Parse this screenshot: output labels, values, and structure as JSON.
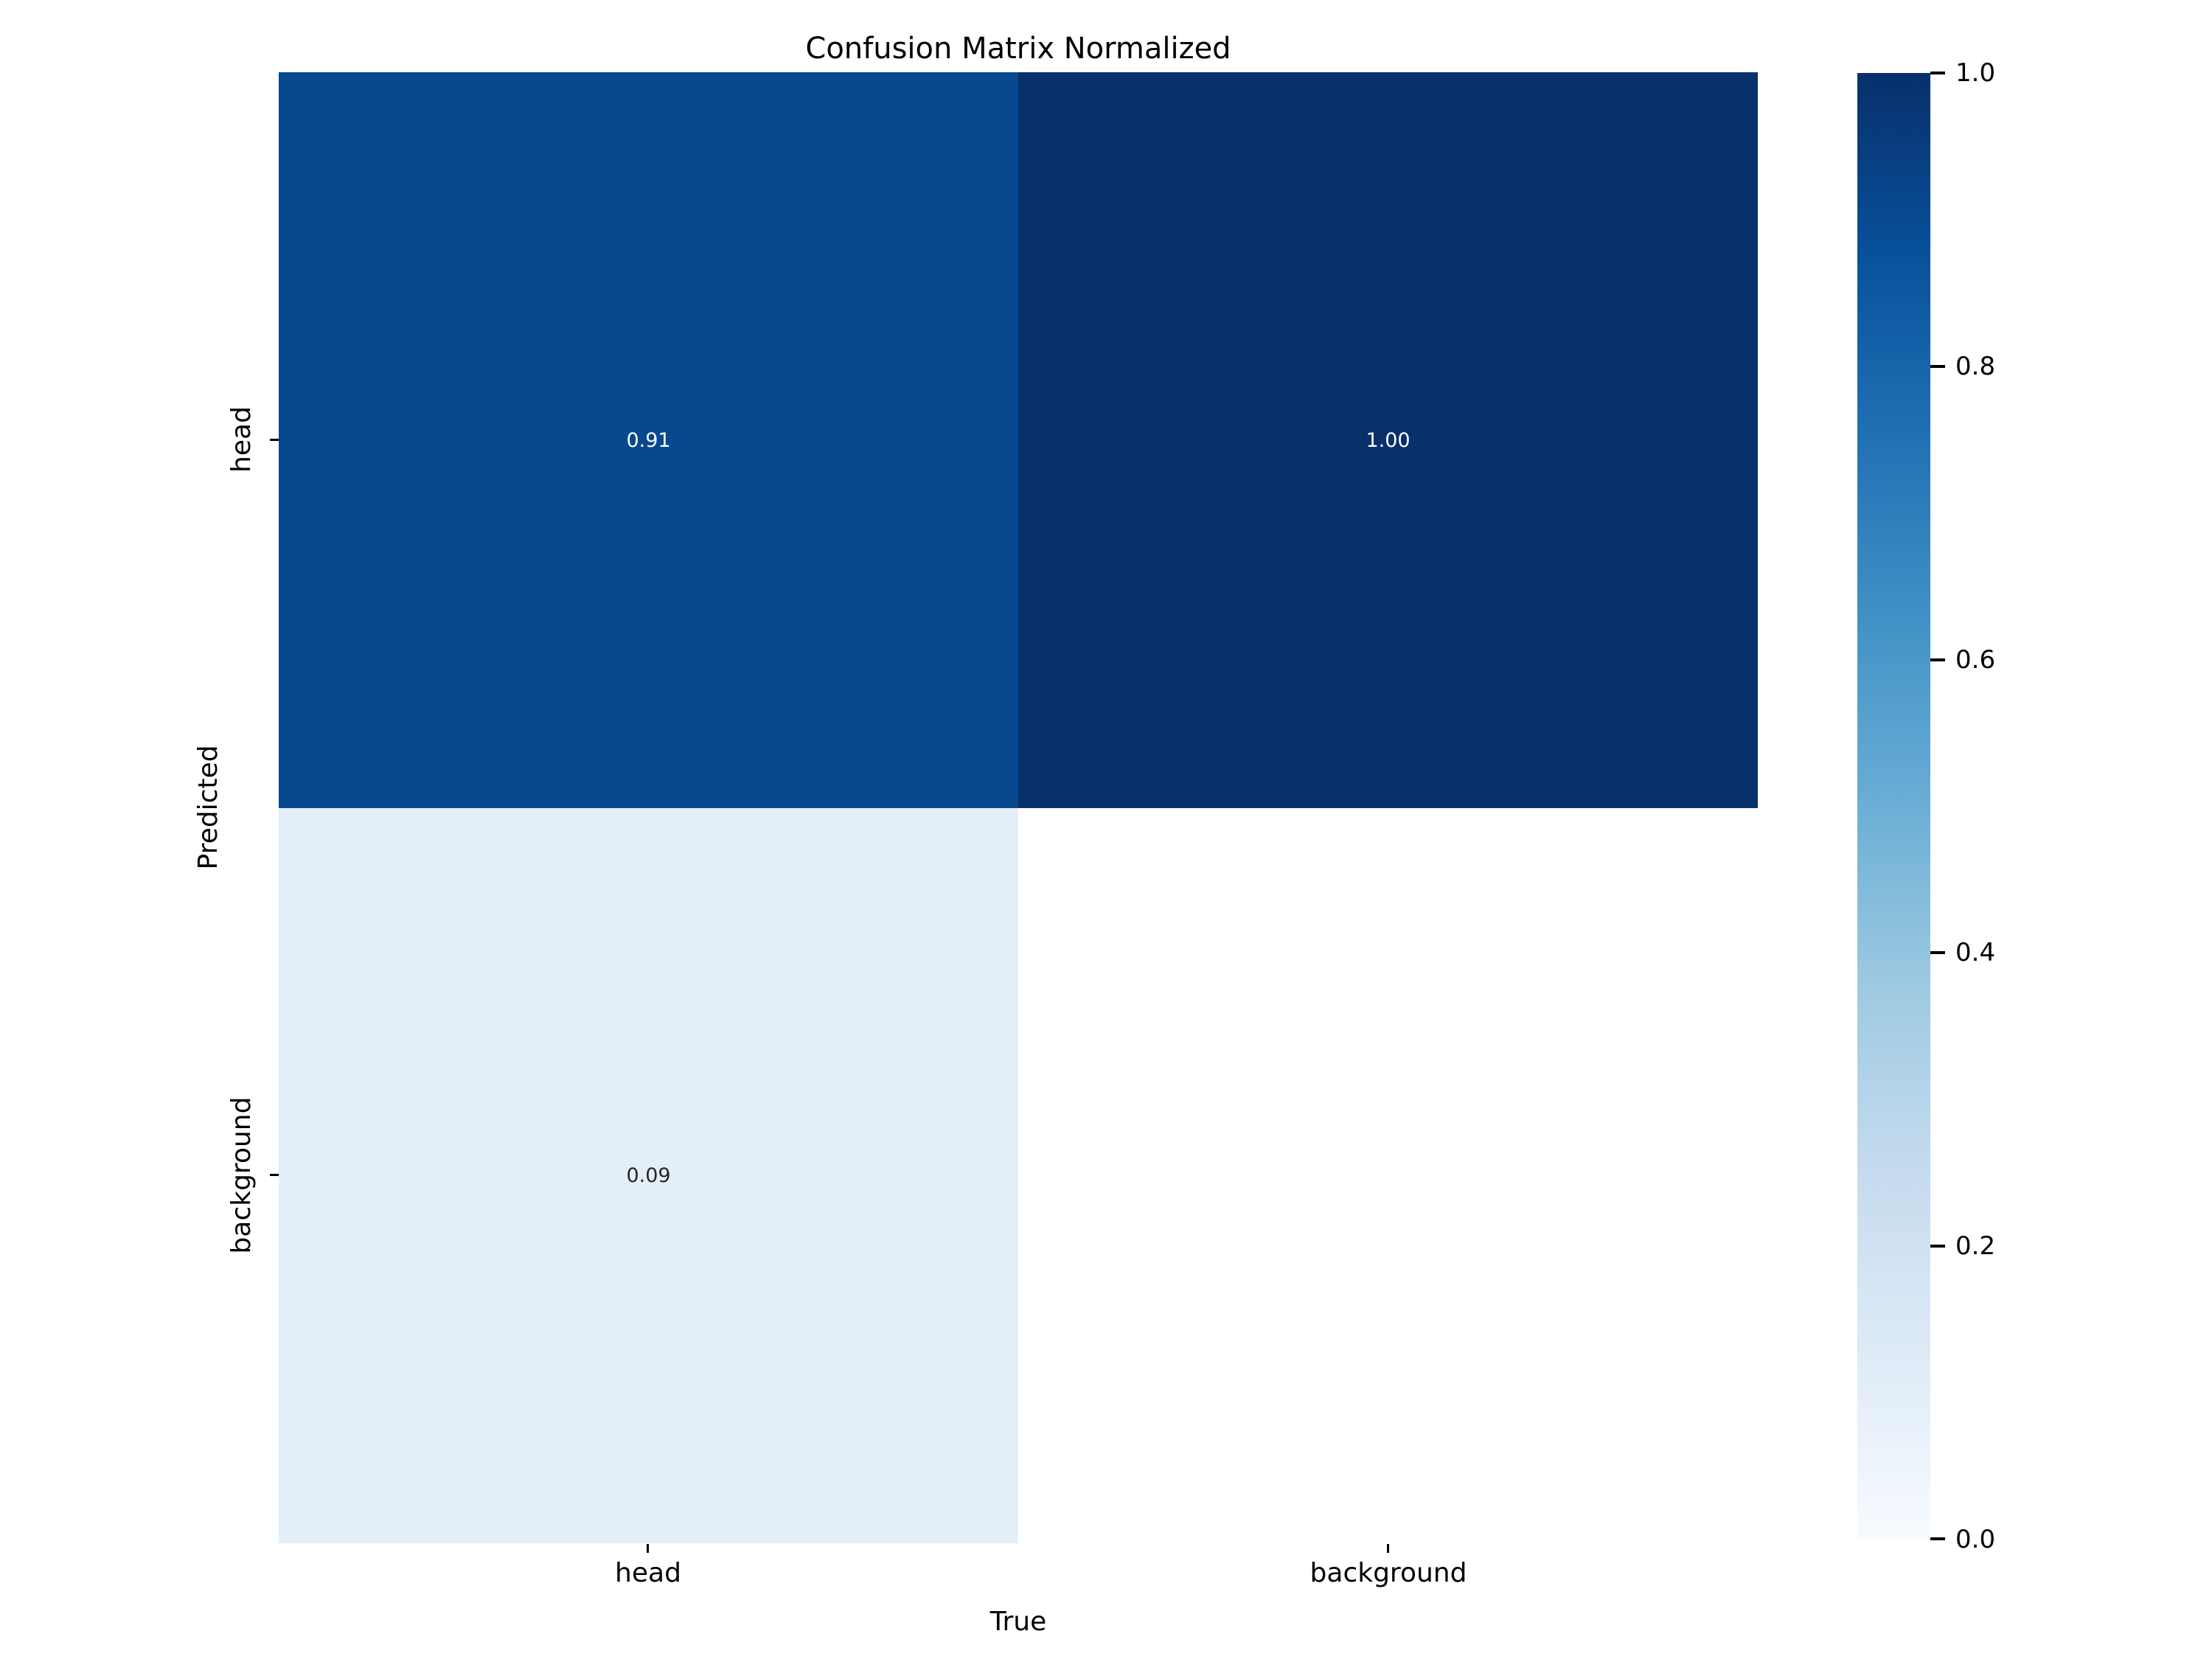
{
  "title": "Confusion Matrix Normalized",
  "chart_data": {
    "type": "heatmap",
    "title": "Confusion Matrix Normalized",
    "xlabel": "True",
    "ylabel": "Predicted",
    "x_categories": [
      "head",
      "background"
    ],
    "y_categories": [
      "head",
      "background"
    ],
    "values": [
      [
        0.91,
        1.0
      ],
      [
        0.09,
        null
      ]
    ],
    "annotations": [
      [
        "0.91",
        "1.00"
      ],
      [
        "0.09",
        ""
      ]
    ],
    "cell_colors": [
      [
        "#08488e",
        "#08306b"
      ],
      [
        "#e5eff8",
        "#ffffff"
      ]
    ],
    "annotation_colors": [
      [
        "#ffffff",
        "#ffffff"
      ],
      [
        "#262626",
        "#262626"
      ]
    ],
    "colormap": "Blues",
    "vmin": 0.0,
    "vmax": 1.0,
    "grid": false,
    "colorbar": {
      "position": "right",
      "ticks": [
        "1.0",
        "0.8",
        "0.6",
        "0.4",
        "0.2",
        "0.0"
      ],
      "gradient_stops": [
        "#08306b",
        "#08519c",
        "#2171b5",
        "#4292c6",
        "#6baed6",
        "#9ecae1",
        "#c6dbef",
        "#deebf7",
        "#f7fbff"
      ]
    }
  }
}
